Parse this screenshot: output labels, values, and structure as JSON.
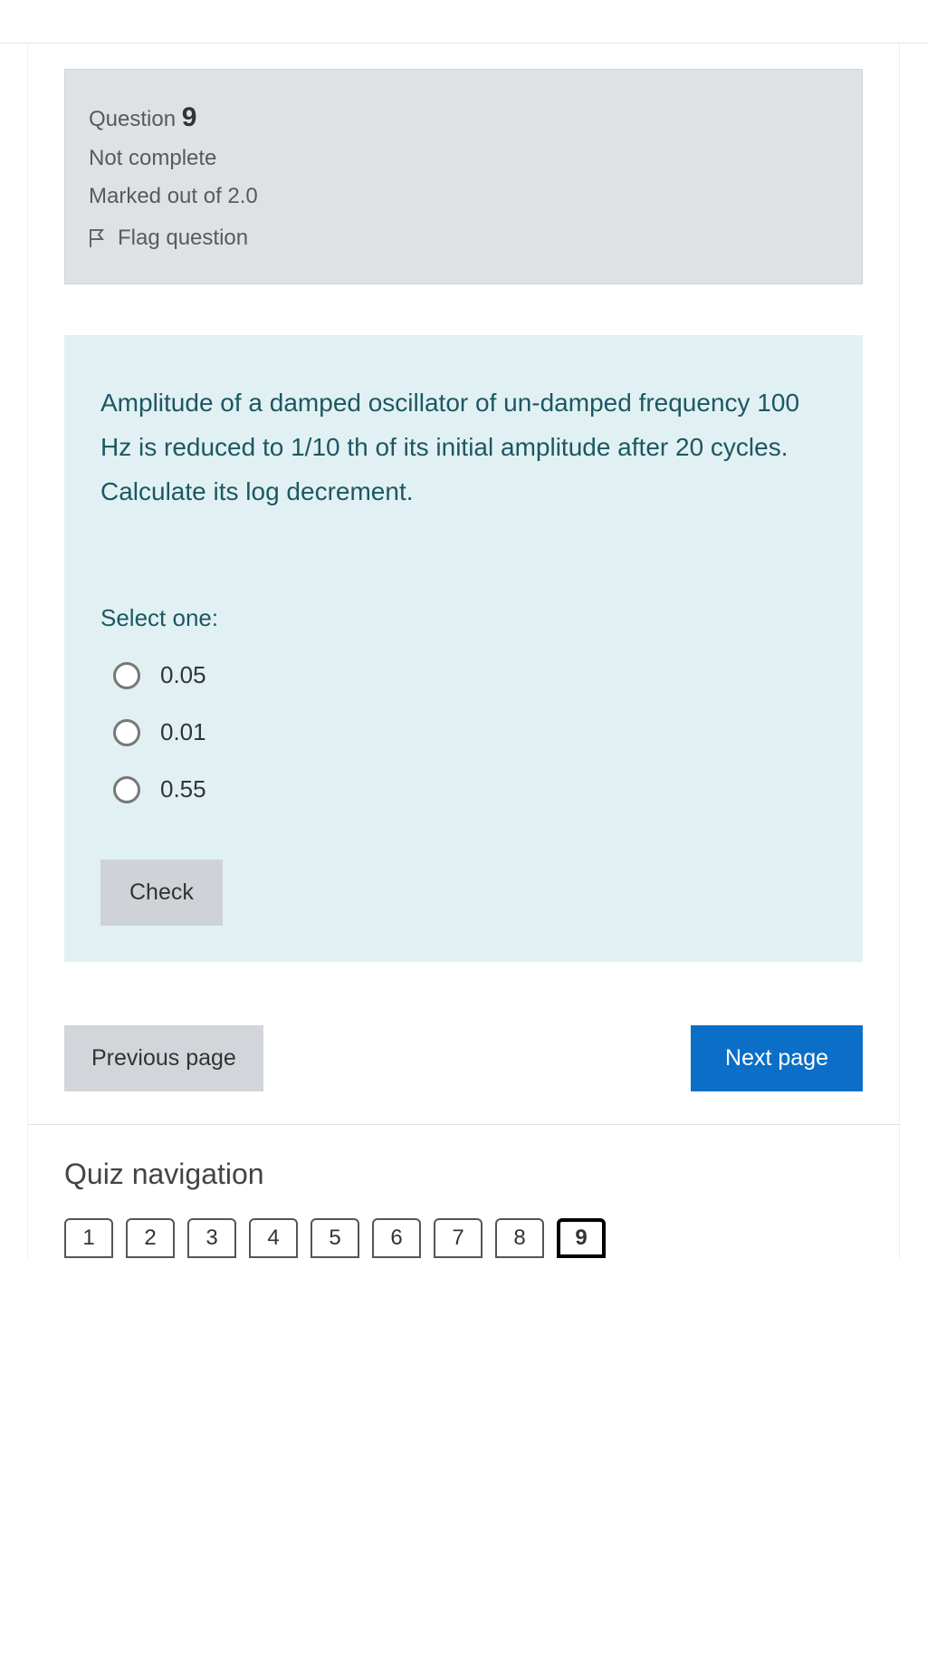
{
  "info": {
    "question_label": "Question",
    "question_number": "9",
    "status": "Not complete",
    "marked": "Marked out of 2.0",
    "flag": "Flag question"
  },
  "question": {
    "text": "Amplitude of a damped oscillator of un-damped frequency 100 Hz is reduced to 1/10 th of its initial amplitude after 20 cycles. Calculate its log decrement.",
    "select_label": "Select one:",
    "options": [
      "0.05",
      "0.01",
      "0.55"
    ],
    "check_label": "Check"
  },
  "nav": {
    "prev": "Previous page",
    "next": "Next page"
  },
  "quiznav": {
    "title": "Quiz navigation",
    "items": [
      "1",
      "2",
      "3",
      "4",
      "5",
      "6",
      "7",
      "8",
      "9"
    ],
    "current": "9"
  },
  "colors": {
    "info_bg": "#dfe2e5",
    "question_bg": "#e1f1f3",
    "question_text": "#1d5763",
    "btn_grey": "#d2d6da",
    "btn_blue": "#0b6fc7"
  }
}
